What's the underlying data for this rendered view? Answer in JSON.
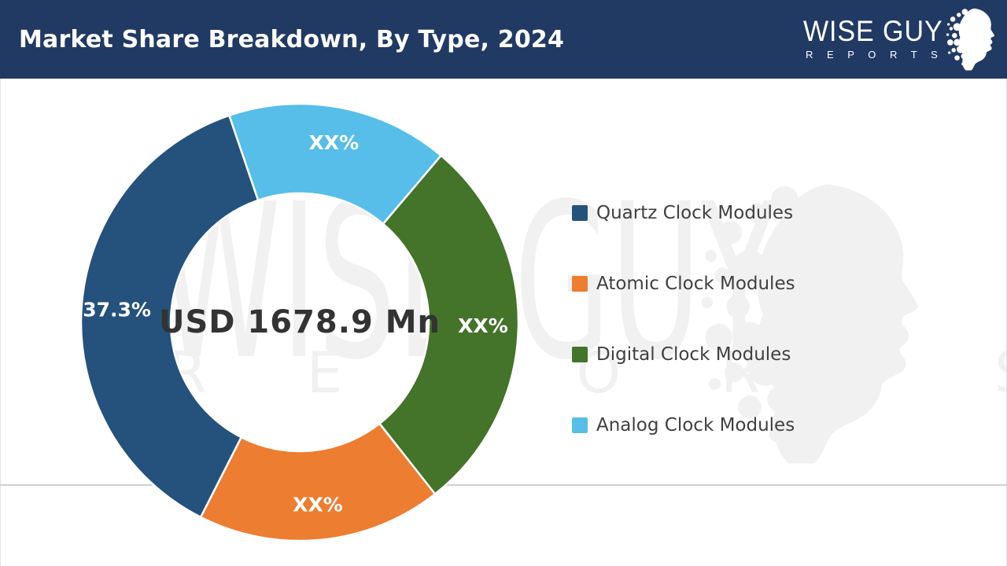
{
  "header": {
    "title": "Market Share Breakdown, By Type, 2024",
    "logo": {
      "name": "WISE GUY",
      "subtitle": "R E P O R T S"
    }
  },
  "watermark": {
    "line1": "WISE GUY",
    "line2": "R E P O R T S"
  },
  "chart_data": {
    "type": "pie",
    "subtype": "donut",
    "title": "Market Share Breakdown, By Type, 2024",
    "center_label": "USD 1678.9 Mn",
    "categories": [
      "Quartz Clock Modules",
      "Atomic Clock Modules",
      "Digital Clock Modules",
      "Analog Clock Modules"
    ],
    "values": [
      37.3,
      18.1,
      28.2,
      16.4
    ],
    "slice_labels": [
      "37.3%",
      "XX%",
      "XX%",
      "XX%"
    ],
    "colors": [
      "#24527C",
      "#ED7D31",
      "#44732A",
      "#56BEE8"
    ],
    "start_angle_deg": 108.8,
    "direction": "counterclockwise",
    "legend_position": "right",
    "label_color": "#ffffff"
  }
}
